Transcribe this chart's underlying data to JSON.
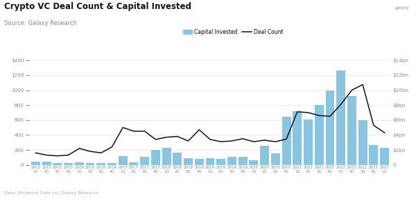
{
  "title": "Crypto VC Deal Count & Capital Invested",
  "subtitle": "Source: Galaxy Research",
  "footer": "Data: Pitchbook Data Inc, Galaxy Research",
  "bar_color": "#89C4E1",
  "line_color": "#111111",
  "background_color": "#ffffff",
  "categories": [
    "2015\n1Q",
    "2015\n2Q",
    "2015\n3Q",
    "2015\n4Q",
    "2016\n1Q",
    "2016\n2Q",
    "2016\n3Q",
    "2016\n4Q",
    "2017\n1Q",
    "2017\n2Q",
    "2017\n3Q",
    "2017\n4Q",
    "2018\n1Q",
    "2018\n2Q",
    "2018\n3Q",
    "2018\n4Q",
    "2019\n1Q",
    "2019\n2Q",
    "2019\n3Q",
    "2019\n4Q",
    "2020\n1Q",
    "2020\n2Q",
    "2020\n3Q",
    "2020\n4Q",
    "2021\n1Q",
    "2021\n2Q",
    "2021\n3Q",
    "2021\n4Q",
    "2022\n1Q",
    "2022\n2Q",
    "2022\n3Q",
    "2022\n4Q",
    "2023\n1Q"
  ],
  "bar_values": [
    40,
    40,
    25,
    20,
    30,
    25,
    20,
    20,
    120,
    35,
    110,
    200,
    230,
    160,
    90,
    80,
    90,
    80,
    110,
    110,
    60,
    260,
    150,
    640,
    720,
    610,
    800,
    995,
    1260,
    920,
    600,
    265,
    230
  ],
  "line_values": [
    160,
    130,
    120,
    130,
    220,
    180,
    160,
    240,
    500,
    450,
    450,
    340,
    370,
    380,
    320,
    470,
    340,
    310,
    320,
    350,
    310,
    330,
    310,
    345,
    710,
    700,
    660,
    650,
    810,
    1000,
    1075,
    530,
    430
  ],
  "ylim_left": [
    0,
    1400
  ],
  "yticks_left": [
    0,
    200,
    400,
    600,
    800,
    1000,
    1200,
    1400
  ],
  "ytick_labels_right": [
    "0",
    "$2bn",
    "$4bn",
    "$6bn",
    "$8bn",
    "$10bn",
    "$12bn",
    "$14bn"
  ],
  "grid_color": "#e0e0e0",
  "legend_label_bar": "Capital Invested",
  "legend_label_line": "Deal Count",
  "tick_color": "#888888",
  "title_color": "#111111",
  "subtitle_color": "#888888",
  "footer_color": "#aaaaaa"
}
